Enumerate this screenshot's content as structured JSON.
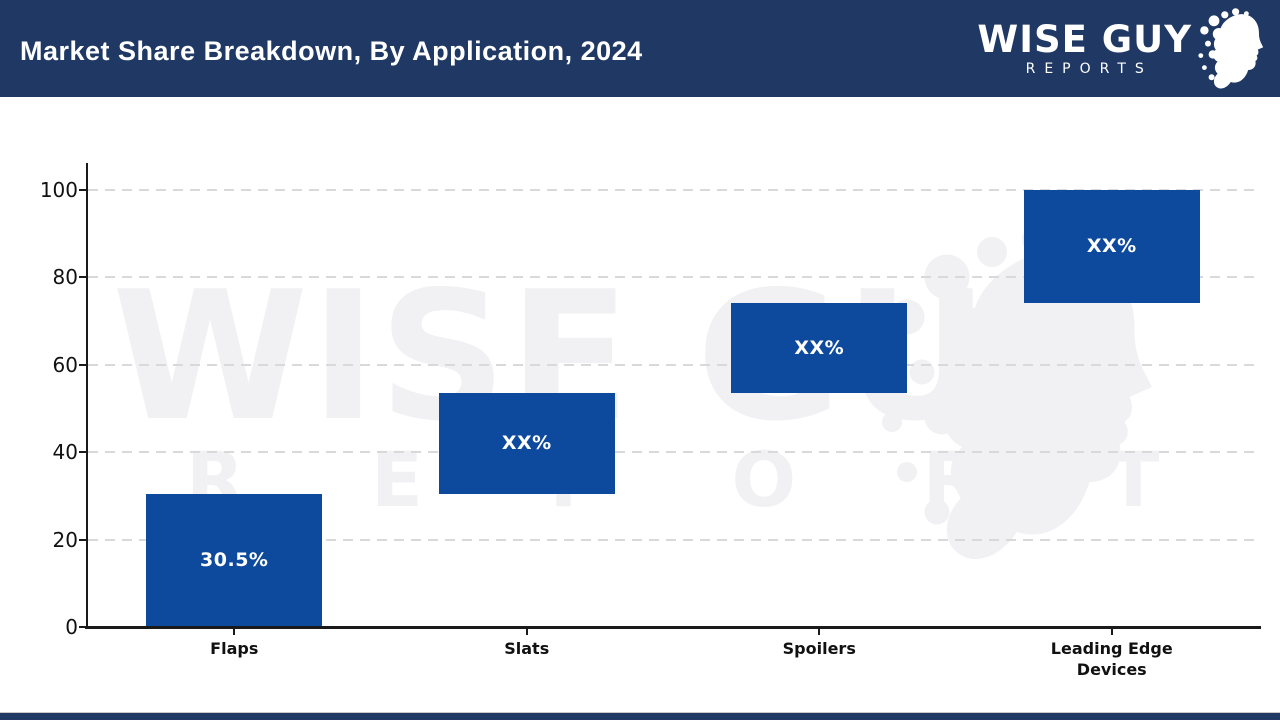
{
  "header": {
    "title": "Market Share Breakdown, By Application, 2024",
    "logo_line1": "WISE GUY",
    "logo_line2": "REPORTS",
    "bg_color": "#1f3864"
  },
  "watermark": {
    "line1": "WISE GUY",
    "line2": "R E P O R T S"
  },
  "chart_data": {
    "type": "waterfall",
    "title": "Market Share Breakdown, By Application, 2024",
    "categories": [
      "Flaps",
      "Slats",
      "Spoilers",
      "Leading Edge Devices"
    ],
    "segments": [
      {
        "category": "Flaps",
        "start": 0,
        "end": 30.5,
        "label": "30.5%"
      },
      {
        "category": "Slats",
        "start": 30.5,
        "end": 53.5,
        "label": "XX%"
      },
      {
        "category": "Spoilers",
        "start": 53.5,
        "end": 74,
        "label": "XX%"
      },
      {
        "category": "Leading Edge Devices",
        "start": 74,
        "end": 100,
        "label": "XX%"
      }
    ],
    "yticks": [
      0,
      20,
      40,
      60,
      80,
      100
    ],
    "ylim": [
      0,
      106
    ],
    "xlabel": "",
    "ylabel": "",
    "grid": "horizontal-dashed",
    "legend": "none",
    "bar_color": "#0d4a9e",
    "bar_label_color": "#ffffff",
    "axis_color": "#1a1a1a",
    "grid_color": "#d9d9d9"
  }
}
